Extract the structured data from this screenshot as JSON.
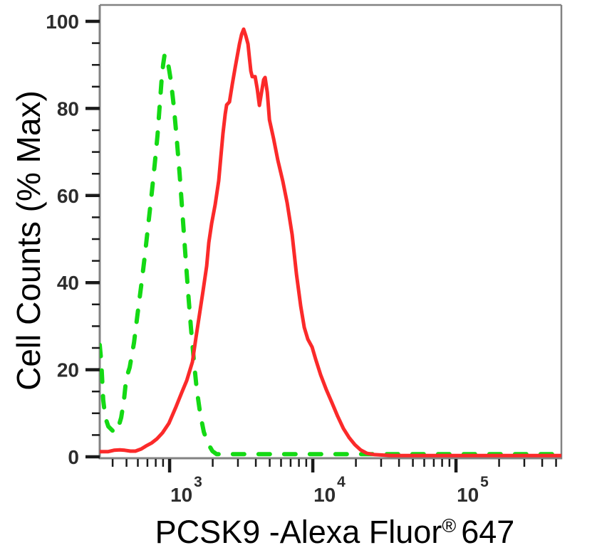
{
  "chart_data": {
    "type": "line",
    "subtype": "flow-cytometry-overlay-histogram",
    "title": "",
    "ylabel": "Cell Counts (% Max)",
    "xlabel": {
      "main": "PCSK9 -Alexa Fluor",
      "registered_mark": "®",
      "suffix": "647"
    },
    "legend": "none",
    "grid": "off",
    "colors": {
      "red_series": "#fb2a2a",
      "green_series": "#14d914",
      "box_border": "#828282",
      "tick": "#1a1a1a",
      "tick_label": "#2d2d2d",
      "title_text": "#000000"
    },
    "x_axis": {
      "scale": "log10",
      "min": 325,
      "max": 545000,
      "min_log": 2.512,
      "max_log": 5.736,
      "major_tick_decades": [
        3,
        4,
        5
      ],
      "tick_label_base": "10",
      "tick_label_exponents": [
        "3",
        "4",
        "5"
      ],
      "minor_tick_multiples": [
        2,
        3,
        4,
        5,
        6,
        7,
        8,
        9
      ]
    },
    "y_axis": {
      "min": 0,
      "max": 100,
      "major_ticks": [
        0,
        20,
        40,
        60,
        80,
        100
      ],
      "tick_labels": [
        "0",
        "20",
        "40",
        "60",
        "80",
        "100"
      ],
      "minor_step": 5
    },
    "series": [
      {
        "name": "green-dashed",
        "style": "dashed",
        "color": "#14d914",
        "stroke_width": 6,
        "points": [
          [
            325,
            25.7
          ],
          [
            333,
            22.0
          ],
          [
            344,
            13.0
          ],
          [
            356,
            9.0
          ],
          [
            373,
            7.0
          ],
          [
            400,
            6.0
          ],
          [
            429,
            5.7
          ],
          [
            459,
            9.0
          ],
          [
            480,
            13.0
          ],
          [
            498,
            18.0
          ],
          [
            526,
            20.5
          ],
          [
            564,
            26.2
          ],
          [
            597,
            32.8
          ],
          [
            633,
            39.3
          ],
          [
            670,
            45.9
          ],
          [
            709,
            53.3
          ],
          [
            751,
            60.7
          ],
          [
            787,
            67.2
          ],
          [
            823,
            73.8
          ],
          [
            851,
            80.3
          ],
          [
            881,
            86.9
          ],
          [
            902,
            90.2
          ],
          [
            923,
            92.4
          ],
          [
            955,
            91.5
          ],
          [
            988,
            89.3
          ],
          [
            1023,
            86.1
          ],
          [
            1071,
            80.3
          ],
          [
            1122,
            73.0
          ],
          [
            1175,
            64.8
          ],
          [
            1230,
            55.7
          ],
          [
            1287,
            46.7
          ],
          [
            1347,
            37.7
          ],
          [
            1410,
            29.5
          ],
          [
            1476,
            22.1
          ],
          [
            1545,
            15.6
          ],
          [
            1637,
            9.8
          ],
          [
            1734,
            5.7
          ],
          [
            1857,
            3.0
          ],
          [
            1990,
            1.3
          ],
          [
            2130,
            0.6
          ],
          [
            2560,
            0.6
          ],
          [
            10000,
            0.6
          ],
          [
            100000,
            0.6
          ],
          [
            544503,
            0.6
          ]
        ]
      },
      {
        "name": "red-solid",
        "style": "solid",
        "color": "#fb2a2a",
        "stroke_width": 5,
        "points": [
          [
            325,
            1.2
          ],
          [
            373,
            1.2
          ],
          [
            409,
            1.5
          ],
          [
            449,
            1.6
          ],
          [
            486,
            1.5
          ],
          [
            532,
            1.3
          ],
          [
            577,
            1.3
          ],
          [
            633,
            1.8
          ],
          [
            685,
            2.5
          ],
          [
            751,
            3.2
          ],
          [
            814,
            4.1
          ],
          [
            892,
            5.5
          ],
          [
            989,
            7.7
          ],
          [
            1109,
            11.5
          ],
          [
            1216,
            14.8
          ],
          [
            1316,
            17.5
          ],
          [
            1443,
            21.8
          ],
          [
            1528,
            27.4
          ],
          [
            1618,
            32.8
          ],
          [
            1713,
            38.2
          ],
          [
            1815,
            43.8
          ],
          [
            1879,
            49.2
          ],
          [
            1967,
            53.6
          ],
          [
            2080,
            57.9
          ],
          [
            2203,
            63.4
          ],
          [
            2280,
            68.9
          ],
          [
            2360,
            74.3
          ],
          [
            2443,
            78.7
          ],
          [
            2500,
            80.8
          ],
          [
            2618,
            81.5
          ],
          [
            2740,
            85.6
          ],
          [
            2870,
            89.4
          ],
          [
            2970,
            92.1
          ],
          [
            3075,
            94.8
          ],
          [
            3180,
            97.0
          ],
          [
            3290,
            98.2
          ],
          [
            3405,
            96.7
          ],
          [
            3525,
            94.8
          ],
          [
            3606,
            91.8
          ],
          [
            3690,
            88.6
          ],
          [
            3775,
            87.3
          ],
          [
            3953,
            87.3
          ],
          [
            4093,
            84.5
          ],
          [
            4236,
            80.7
          ],
          [
            4385,
            83.7
          ],
          [
            4539,
            86.6
          ],
          [
            4645,
            87.1
          ],
          [
            4808,
            83.7
          ],
          [
            4977,
            77.4
          ],
          [
            5325,
            73.0
          ],
          [
            5702,
            68.1
          ],
          [
            6179,
            63.2
          ],
          [
            6621,
            58.3
          ],
          [
            7174,
            51.0
          ],
          [
            7690,
            42.0
          ],
          [
            8228,
            34.6
          ],
          [
            8716,
            29.7
          ],
          [
            9232,
            27.0
          ],
          [
            9886,
            25.2
          ],
          [
            10469,
            22.4
          ],
          [
            11343,
            18.8
          ],
          [
            12428,
            15.4
          ],
          [
            13617,
            12.4
          ],
          [
            14920,
            9.3
          ],
          [
            16348,
            6.5
          ],
          [
            17947,
            4.4
          ],
          [
            19665,
            2.8
          ],
          [
            21528,
            1.6
          ],
          [
            23877,
            0.8
          ],
          [
            26792,
            0.5
          ],
          [
            35645,
            0.3
          ],
          [
            63241,
            0.3
          ],
          [
            199076,
            0.3
          ],
          [
            544503,
            0.3
          ]
        ]
      }
    ]
  }
}
